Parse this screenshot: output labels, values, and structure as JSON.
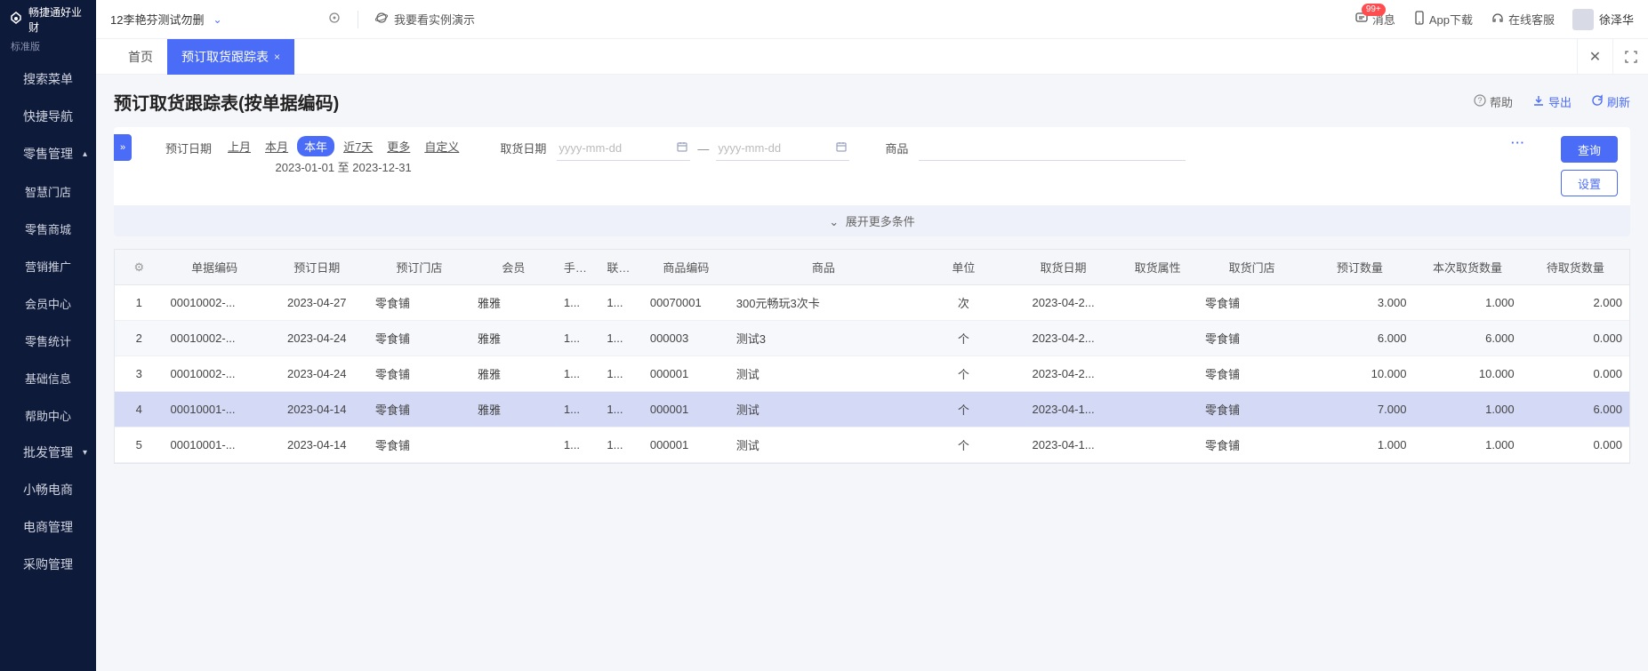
{
  "brand": {
    "name": "畅捷通好业财",
    "edition": "标准版"
  },
  "topbar": {
    "org": "12李艳芬测试勿删",
    "demo": "我要看实例演示",
    "messages": {
      "label": "消息",
      "badge": "99+"
    },
    "download": "App下载",
    "support": "在线客服",
    "user": "徐泽华"
  },
  "sidebar": {
    "items": [
      {
        "label": "搜索菜单",
        "sub": false
      },
      {
        "label": "快捷导航",
        "sub": false
      },
      {
        "label": "零售管理",
        "sub": false,
        "expanded": true
      },
      {
        "label": "智慧门店",
        "sub": true
      },
      {
        "label": "零售商城",
        "sub": true
      },
      {
        "label": "营销推广",
        "sub": true
      },
      {
        "label": "会员中心",
        "sub": true
      },
      {
        "label": "零售统计",
        "sub": true
      },
      {
        "label": "基础信息",
        "sub": true
      },
      {
        "label": "帮助中心",
        "sub": true
      },
      {
        "label": "批发管理",
        "sub": false,
        "collapsed": true
      },
      {
        "label": "小畅电商",
        "sub": false
      },
      {
        "label": "电商管理",
        "sub": false
      },
      {
        "label": "采购管理",
        "sub": false
      }
    ]
  },
  "tabs": {
    "items": [
      {
        "label": "首页",
        "active": false,
        "closable": false
      },
      {
        "label": "预订取货跟踪表",
        "active": true,
        "closable": true
      }
    ]
  },
  "page": {
    "title": "预订取货跟踪表(按单据编码)",
    "help": "帮助",
    "export": "导出",
    "refresh": "刷新"
  },
  "filters": {
    "bookingDate": {
      "label": "预订日期",
      "shortcuts": [
        "上月",
        "本月",
        "本年",
        "近7天",
        "更多",
        "自定义"
      ],
      "active": "本年",
      "rangeText": "2023-01-01 至 2023-12-31"
    },
    "pickupDate": {
      "label": "取货日期",
      "placeholder": "yyyy-mm-dd"
    },
    "product": {
      "label": "商品"
    },
    "queryBtn": "查询",
    "settingsBtn": "设置",
    "expandLabel": "展开更多条件"
  },
  "table": {
    "columns": [
      "单据编码",
      "预订日期",
      "预订门店",
      "会员",
      "手机号",
      "联系人电",
      "商品编码",
      "商品",
      "单位",
      "取货日期",
      "取货属性",
      "取货门店",
      "预订数量",
      "本次取货数量",
      "待取货数量"
    ],
    "widths": [
      45,
      95,
      95,
      95,
      80,
      40,
      40,
      80,
      175,
      85,
      100,
      75,
      100,
      100,
      100,
      100
    ],
    "rows": [
      {
        "idx": 1,
        "code": "00010002-...",
        "bookingDate": "2023-04-27",
        "bookingStore": "零食铺",
        "member": "雅雅",
        "phone": "1...",
        "contact": "1...",
        "prodCode": "00070001",
        "product": "300元畅玩3次卡",
        "unit": "次",
        "pickupDate": "2023-04-2...",
        "pickupAttr": "",
        "pickupStore": "零食铺",
        "qtyBook": "3.000",
        "qtyThis": "1.000",
        "qtyPending": "2.000"
      },
      {
        "idx": 2,
        "code": "00010002-...",
        "bookingDate": "2023-04-24",
        "bookingStore": "零食铺",
        "member": "雅雅",
        "phone": "1...",
        "contact": "1...",
        "prodCode": "000003",
        "product": "测试3",
        "unit": "个",
        "pickupDate": "2023-04-2...",
        "pickupAttr": "",
        "pickupStore": "零食铺",
        "qtyBook": "6.000",
        "qtyThis": "6.000",
        "qtyPending": "0.000"
      },
      {
        "idx": 3,
        "code": "00010002-...",
        "bookingDate": "2023-04-24",
        "bookingStore": "零食铺",
        "member": "雅雅",
        "phone": "1...",
        "contact": "1...",
        "prodCode": "000001",
        "product": "测试",
        "unit": "个",
        "pickupDate": "2023-04-2...",
        "pickupAttr": "",
        "pickupStore": "零食铺",
        "qtyBook": "10.000",
        "qtyThis": "10.000",
        "qtyPending": "0.000"
      },
      {
        "idx": 4,
        "code": "00010001-...",
        "bookingDate": "2023-04-14",
        "bookingStore": "零食铺",
        "member": "雅雅",
        "phone": "1...",
        "contact": "1...",
        "prodCode": "000001",
        "product": "测试",
        "unit": "个",
        "pickupDate": "2023-04-1...",
        "pickupAttr": "",
        "pickupStore": "零食铺",
        "qtyBook": "7.000",
        "qtyThis": "1.000",
        "qtyPending": "6.000",
        "selected": true
      },
      {
        "idx": 5,
        "code": "00010001-...",
        "bookingDate": "2023-04-14",
        "bookingStore": "零食铺",
        "member": "",
        "phone": "1...",
        "contact": "1...",
        "prodCode": "000001",
        "product": "测试",
        "unit": "个",
        "pickupDate": "2023-04-1...",
        "pickupAttr": "",
        "pickupStore": "零食铺",
        "qtyBook": "1.000",
        "qtyThis": "1.000",
        "qtyPending": "0.000"
      }
    ]
  },
  "colors": {
    "accent": "#4a6cf7",
    "sidebar": "#0e1a3a",
    "badge": "#ff4d4f",
    "rowSelected": "#d4d9f5"
  }
}
